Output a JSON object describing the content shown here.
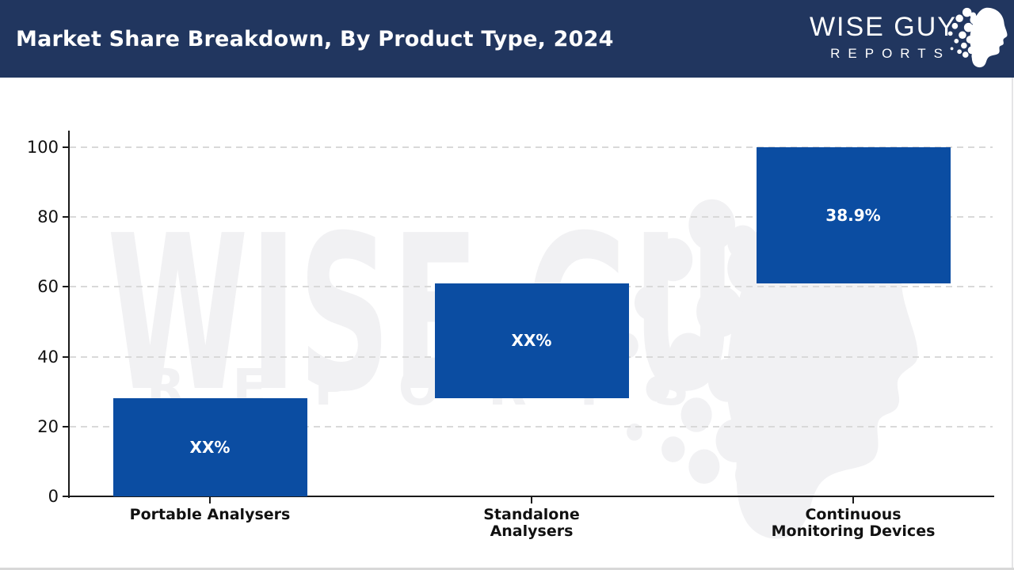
{
  "header": {
    "title": "Market Share Breakdown, By Product Type, 2024",
    "bg_color": "#21365f",
    "text_color": "#ffffff",
    "logo": {
      "primary": "WISE GUY",
      "secondary": "REPORTS"
    }
  },
  "watermark": {
    "primary": "WISE GUY",
    "secondary": "REPORTS"
  },
  "chart_data": {
    "type": "bar",
    "variant": "floating-waterfall",
    "title": "Market Share Breakdown, By Product Type, 2024",
    "categories": [
      "Portable Analysers",
      "Standalone Analysers",
      "Continuous Monitoring Devices"
    ],
    "category_lines": [
      [
        "Portable Analysers"
      ],
      [
        "Standalone",
        "Analysers"
      ],
      [
        "Continuous",
        "Monitoring Devices"
      ]
    ],
    "bars": [
      {
        "category": "Portable Analysers",
        "start": 0,
        "end": 28.1,
        "label": "XX%"
      },
      {
        "category": "Standalone Analysers",
        "start": 28.1,
        "end": 61.1,
        "label": "XX%"
      },
      {
        "category": "Continuous Monitoring Devices",
        "start": 61.1,
        "end": 100,
        "label": "38.9%"
      }
    ],
    "bar_color": "#0b4da2",
    "bar_label_color": "#ffffff",
    "xlabel": "",
    "ylabel": "",
    "ylim": [
      0,
      100
    ],
    "yticks": [
      0,
      20,
      40,
      60,
      80,
      100
    ],
    "grid": {
      "horizontal": true,
      "style": "dashed",
      "color": "#d9d9d9"
    },
    "legend": "none"
  }
}
